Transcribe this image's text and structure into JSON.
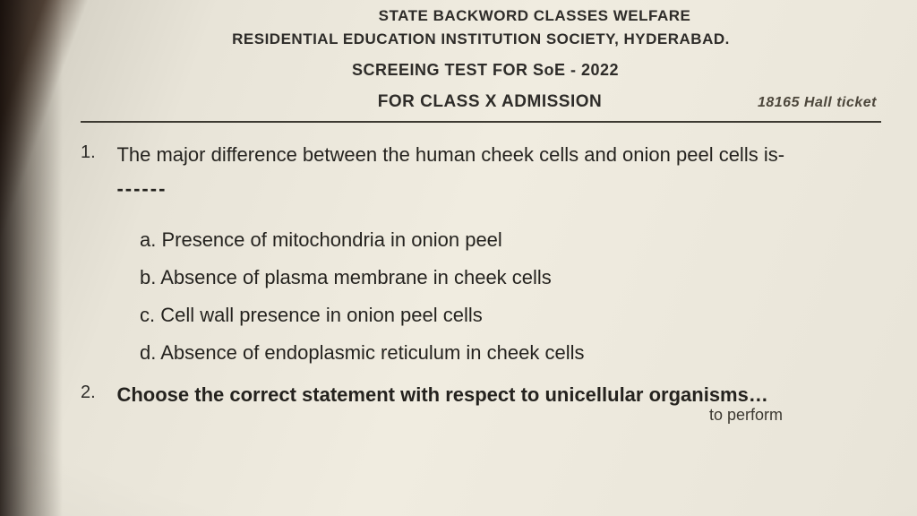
{
  "header": {
    "line1": "STATE BACKWORD CLASSES WELFARE",
    "line2": "RESIDENTIAL EDUCATION INSTITUTION SOCIETY, HYDERABAD.",
    "line3": "SCREEING TEST FOR SoE - 2022",
    "line4": "FOR CLASS X  ADMISSION",
    "ticket": "18165 Hall ticket"
  },
  "q1": {
    "num": "1.",
    "text": "The major difference between the human cheek cells and onion peel cells is-",
    "blank": "------",
    "a": "a. Presence of mitochondria in onion peel",
    "b": "b. Absence of plasma membrane in cheek cells",
    "c": "c. Cell wall presence in onion peel cells",
    "d": "d. Absence of endoplasmic reticulum in cheek cells"
  },
  "q2": {
    "num": "2.",
    "text": "Choose the correct statement with respect to unicellular organisms…",
    "cut": "to perform"
  }
}
